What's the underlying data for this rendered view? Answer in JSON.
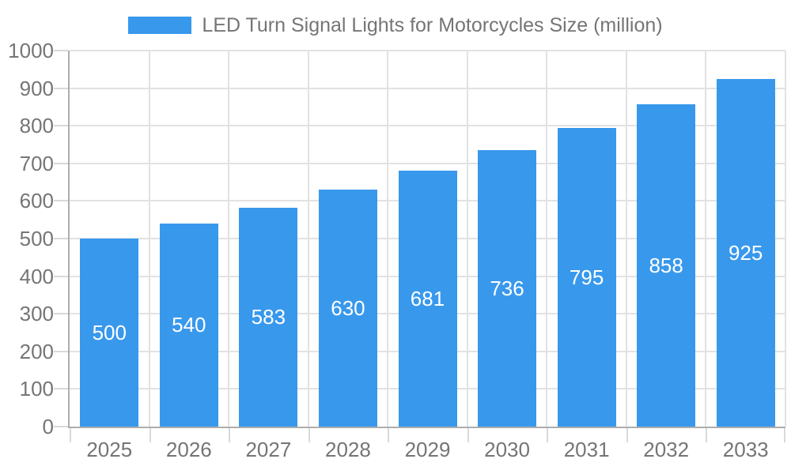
{
  "legend": {
    "label": "LED Turn Signal Lights for Motorcycles Size (million)"
  },
  "chart_data": {
    "type": "bar",
    "title": "LED Turn Signal Lights for Motorcycles Size (million)",
    "categories": [
      "2025",
      "2026",
      "2027",
      "2028",
      "2029",
      "2030",
      "2031",
      "2032",
      "2033"
    ],
    "values": [
      500,
      540,
      583,
      630,
      681,
      736,
      795,
      858,
      925
    ],
    "series": [
      {
        "name": "LED Turn Signal Lights for Motorcycles Size (million)",
        "values": [
          500,
          540,
          583,
          630,
          681,
          736,
          795,
          858,
          925
        ]
      }
    ],
    "xlabel": "",
    "ylabel": "",
    "ylim": [
      0,
      1000
    ],
    "ytick_step": 100,
    "ytick_labels": [
      "0",
      "100",
      "200",
      "300",
      "400",
      "500",
      "600",
      "700",
      "800",
      "900",
      "1000"
    ],
    "grid": true,
    "legend_position": "top",
    "bar_labels_visible": true,
    "colors": {
      "bar": "#3898EC",
      "bar_value_text": "#ffffff",
      "axis_text": "#757575",
      "legend_text": "#757575",
      "gridline": "#e2e2e2",
      "tick": "#d9d9d9",
      "axis_line": "#adadad",
      "background": "#ffffff"
    }
  }
}
